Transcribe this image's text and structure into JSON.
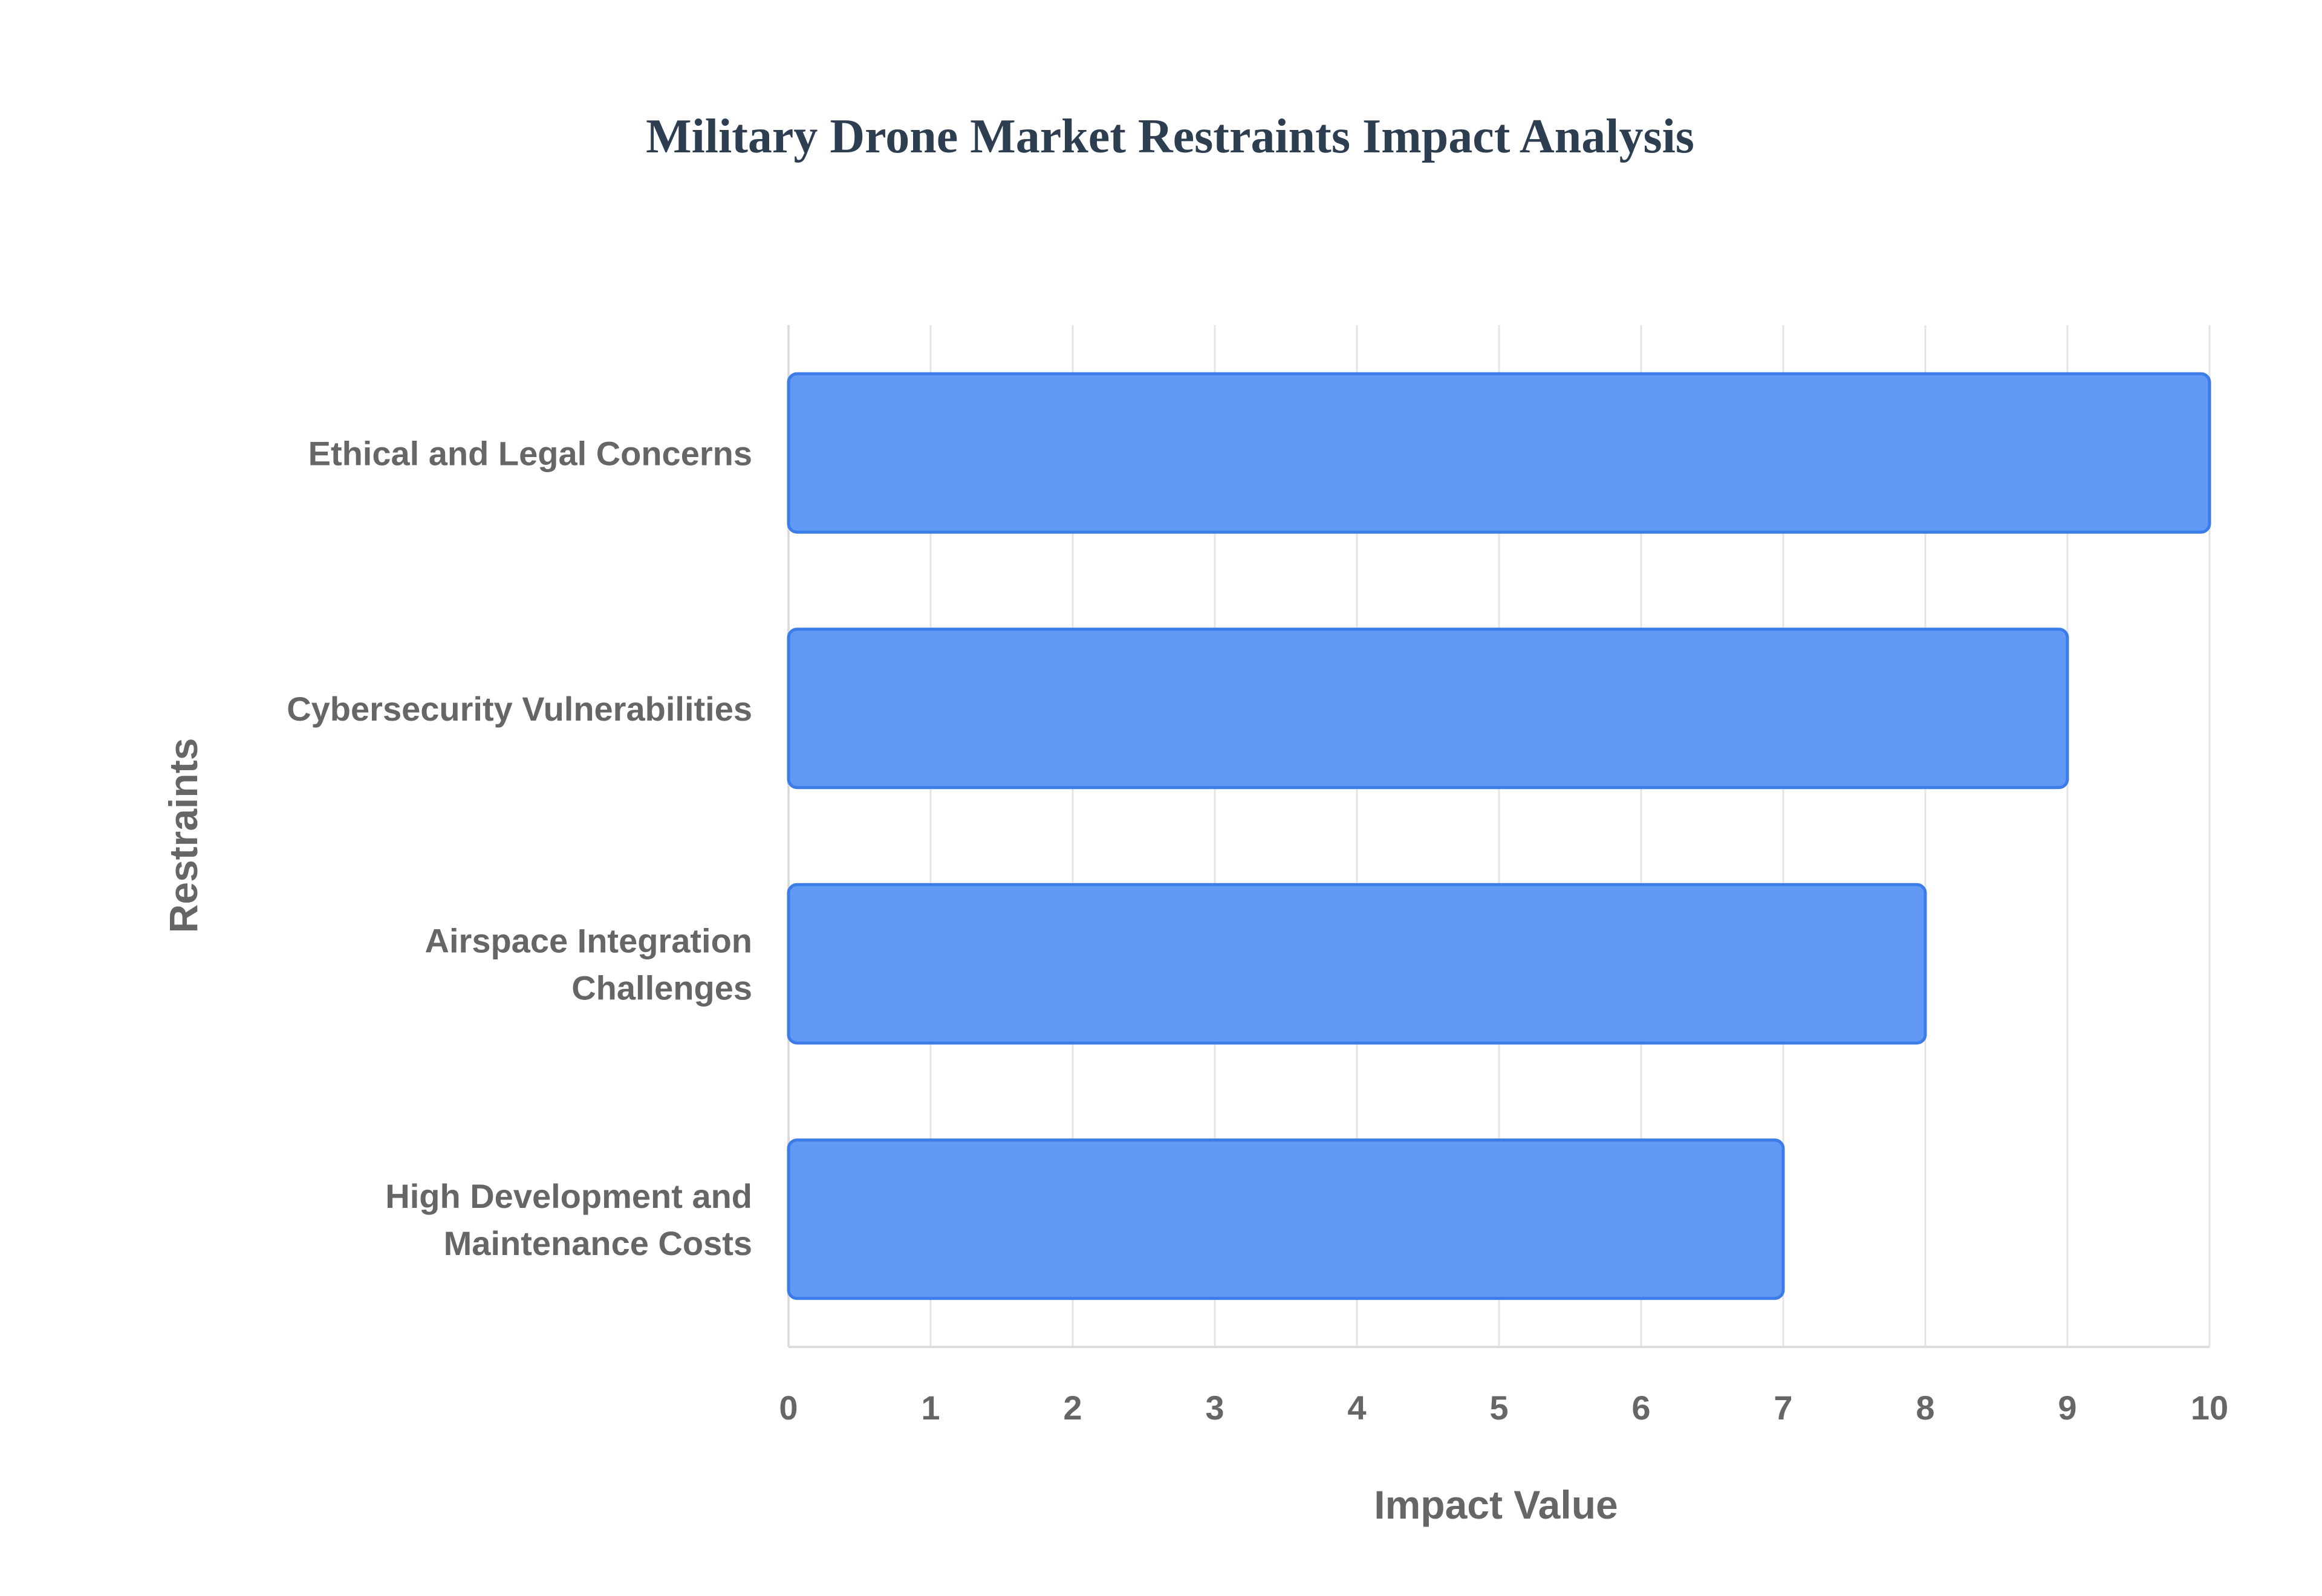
{
  "chart_data": {
    "type": "bar",
    "orientation": "horizontal",
    "title": "Military Drone Market Restraints Impact Analysis",
    "xlabel": "Impact Value",
    "ylabel": "Restraints",
    "categories": [
      "Ethical and Legal Concerns",
      "Cybersecurity Vulnerabilities",
      "Airspace Integration Challenges",
      "High Development and Maintenance Costs"
    ],
    "category_lines": [
      [
        "Ethical and Legal Concerns"
      ],
      [
        "Cybersecurity Vulnerabilities"
      ],
      [
        "Airspace Integration",
        "Challenges"
      ],
      [
        "High Development and",
        "Maintenance Costs"
      ]
    ],
    "values": [
      10,
      9,
      8,
      7
    ],
    "xlim": [
      0,
      10
    ],
    "x_ticks": [
      "0",
      "1",
      "2",
      "3",
      "4",
      "5",
      "6",
      "7",
      "8",
      "9",
      "10"
    ],
    "grid": true,
    "legend": "none",
    "bar_color": "#6299f5",
    "bar_border_color": "#3b7ce8"
  }
}
